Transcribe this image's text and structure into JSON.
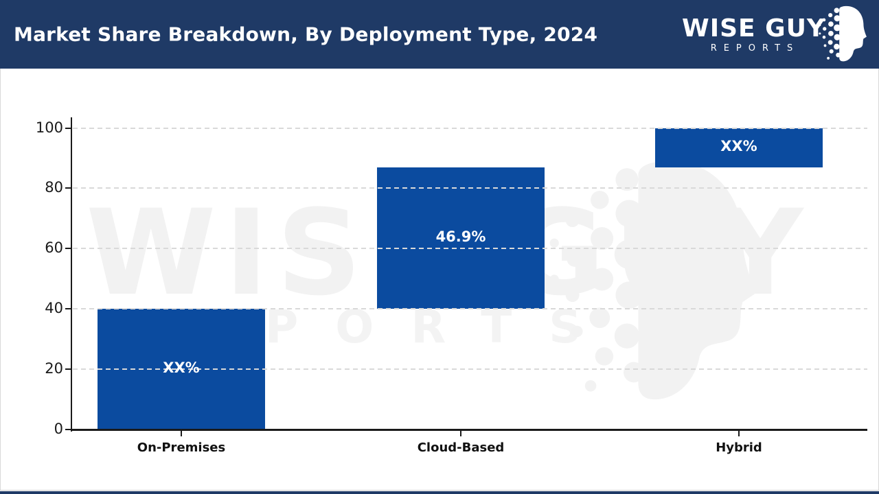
{
  "header": {
    "title": "Market Share Breakdown, By Deployment Type, 2024",
    "logo": {
      "line1": "WISE GUY",
      "line2": "REPORTS"
    }
  },
  "watermark": {
    "line1": "WISE GUY",
    "line2": "REPORTS"
  },
  "colors": {
    "header_bg": "#1F3A66",
    "bar": "#0B4B9F",
    "gridline": "#D9D9D9",
    "watermark": "#F2F2F2",
    "bar_label_text": "#FFFFFF"
  },
  "chart_data": {
    "type": "bar",
    "variant": "waterfall",
    "title": "Market Share Breakdown, By Deployment Type, 2024",
    "categories": [
      "On-Premises",
      "Cloud-Based",
      "Hybrid"
    ],
    "segments": [
      {
        "category": "On-Premises",
        "start": 0,
        "end": 40,
        "label": "XX%"
      },
      {
        "category": "Cloud-Based",
        "start": 40,
        "end": 86.9,
        "label": "46.9%"
      },
      {
        "category": "Hybrid",
        "start": 86.9,
        "end": 100,
        "label": "XX%"
      }
    ],
    "xlabel": "",
    "ylabel": "",
    "ylim": [
      0,
      100
    ],
    "yticks": [
      0,
      20,
      40,
      60,
      80,
      100
    ],
    "grid": "horizontal-dashed",
    "legend": "none",
    "bar_color": "#0B4B9F"
  }
}
